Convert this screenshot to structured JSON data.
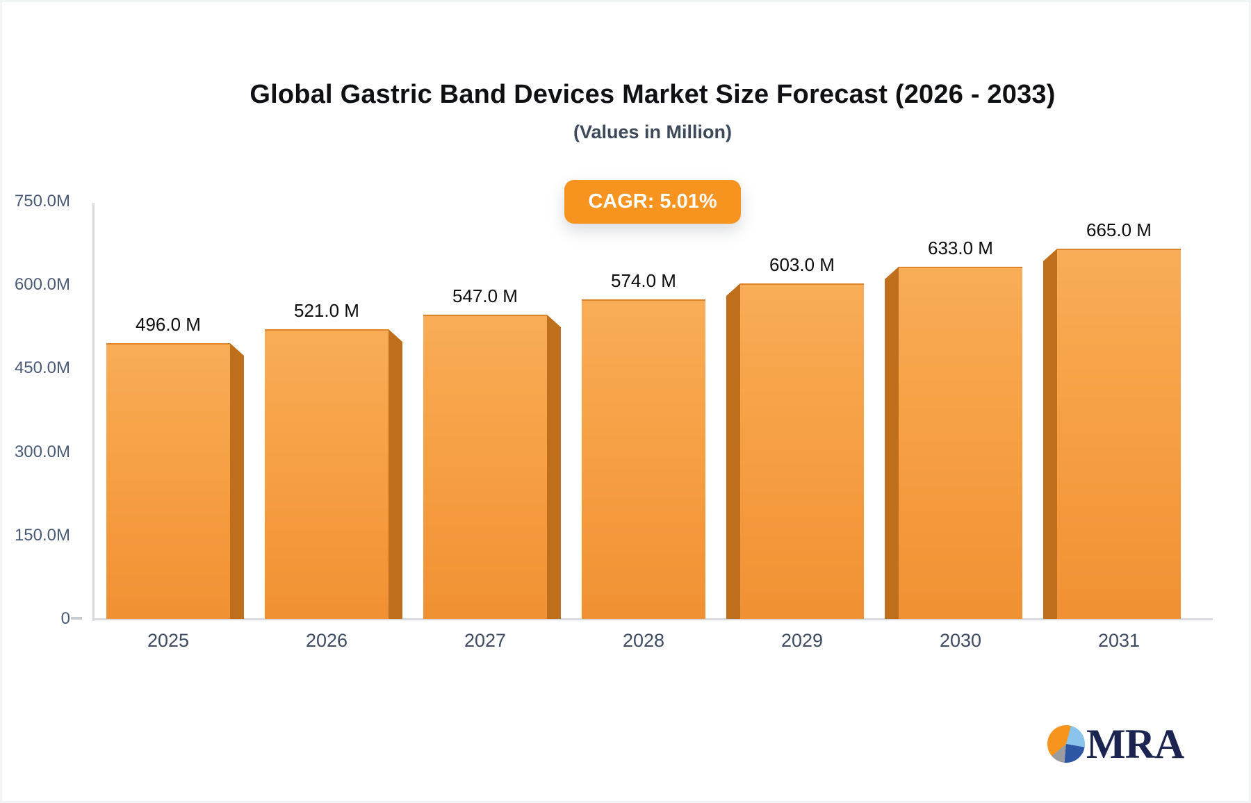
{
  "header": {
    "title": "Global Gastric Band Devices Market Size Forecast (2026 - 2033)",
    "subtitle": "(Values in Million)",
    "cagr_badge": "CAGR: 5.01%"
  },
  "chart_data": {
    "type": "bar",
    "categories": [
      "2025",
      "2026",
      "2027",
      "2028",
      "2029",
      "2030",
      "2031"
    ],
    "values": [
      496,
      521,
      547,
      574,
      603,
      633,
      665
    ],
    "bar_labels": [
      "496.0 M",
      "521.0 M",
      "547.0 M",
      "574.0 M",
      "603.0 M",
      "633.0 M",
      "665.0 M"
    ],
    "y_ticks": [
      {
        "value": 750,
        "label": "750.0M"
      },
      {
        "value": 600,
        "label": "600.0M"
      },
      {
        "value": 450,
        "label": "450.0M"
      },
      {
        "value": 300,
        "label": "300.0M"
      },
      {
        "value": 150,
        "label": "150.0M"
      },
      {
        "value": 0,
        "label": "0"
      }
    ],
    "ylim": [
      0,
      750
    ],
    "unit": "Million",
    "grid": false,
    "legend": false,
    "style": "3d-column",
    "title": "Global Gastric Band Devices Market Size Forecast (2026 - 2033)",
    "xlabel": "",
    "ylabel": ""
  },
  "colors": {
    "bar_face_top": "#f9ac57",
    "bar_face_bottom": "#f09133",
    "bar_side": "#bf6f1b",
    "badge_bg": "#f7941f",
    "badge_fg": "#ffffff",
    "axis": "#d9dadd",
    "tick_label": "#4a5a74",
    "category_label": "#3e4a61",
    "value_label": "#0c0d0f",
    "title": "#0e1013",
    "subtitle": "#3e4959",
    "logo_navy": "#1b2550",
    "logo_orange": "#f7941e",
    "logo_lightblue": "#8ac4ec",
    "logo_darkblue": "#2d57a5",
    "logo_gray": "#9b9da0"
  },
  "logo": {
    "text": "MRA",
    "icon": "pie-chart-icon"
  }
}
